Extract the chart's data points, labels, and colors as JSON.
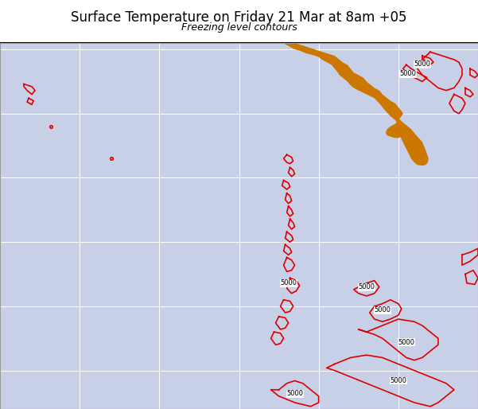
{
  "title": "Surface Temperature on Friday 21 Mar at 8am +05",
  "subtitle": "Freezing level contours",
  "title_fontsize": 12,
  "subtitle_fontsize": 9,
  "ocean_color": "#c8d0e8",
  "land_color": "#cc7700",
  "contour_color": "#dd0000",
  "grid_color": "#ffffff",
  "title_color": "#000000",
  "figsize": [
    6.01,
    5.14
  ],
  "dpi": 100,
  "lon_min": 55.0,
  "lon_max": 85.0,
  "lat_min": -13.0,
  "lat_max": 15.5,
  "india_lons": [
    72.8,
    73.2,
    73.5,
    74.0,
    74.5,
    75.0,
    75.5,
    76.0,
    76.3,
    76.5,
    76.8,
    77.0,
    77.2,
    77.5,
    77.8,
    78.0,
    78.3,
    78.5,
    78.8,
    79.0,
    79.3,
    79.5,
    79.8,
    80.0,
    80.2,
    80.3,
    80.2,
    80.0,
    79.8,
    79.5,
    79.3,
    79.2,
    79.3,
    79.5,
    79.8,
    80.0,
    80.2,
    80.3,
    80.2,
    80.0,
    79.8,
    79.5,
    79.2,
    79.0,
    78.8,
    78.5,
    78.0,
    77.5,
    77.2,
    77.0,
    76.8,
    76.5,
    76.3,
    76.2,
    76.0,
    75.8,
    75.5,
    75.2,
    75.0,
    74.8,
    74.5,
    74.2,
    74.0,
    73.8,
    73.5,
    73.2,
    72.9,
    72.8
  ],
  "india_lats": [
    15.5,
    15.5,
    15.5,
    15.3,
    15.1,
    14.9,
    14.7,
    14.5,
    14.2,
    14.0,
    13.8,
    13.5,
    13.2,
    13.0,
    12.8,
    12.5,
    12.2,
    12.0,
    11.8,
    11.5,
    11.2,
    11.0,
    10.8,
    10.5,
    10.2,
    10.0,
    9.8,
    9.5,
    9.2,
    9.0,
    8.8,
    8.5,
    8.3,
    8.2,
    8.1,
    8.1,
    8.2,
    8.5,
    8.8,
    9.2,
    9.5,
    9.8,
    10.2,
    10.5,
    10.8,
    11.2,
    11.5,
    11.8,
    12.0,
    12.2,
    12.5,
    12.8,
    13.0,
    13.2,
    13.5,
    13.8,
    14.0,
    14.2,
    14.4,
    14.5,
    14.6,
    14.7,
    14.8,
    14.9,
    15.0,
    15.2,
    15.4,
    15.5
  ],
  "sl_lons": [
    79.85,
    80.0,
    80.2,
    80.5,
    80.8,
    81.0,
    81.2,
    81.5,
    81.7,
    81.9,
    81.85,
    81.7,
    81.5,
    81.2,
    81.0,
    80.8,
    80.6,
    80.4,
    80.2,
    80.0,
    79.9,
    79.85
  ],
  "sl_lats": [
    9.85,
    9.7,
    9.4,
    9.1,
    8.8,
    8.5,
    8.2,
    7.8,
    7.2,
    6.5,
    6.2,
    6.0,
    5.95,
    6.0,
    6.2,
    6.5,
    7.0,
    7.5,
    8.0,
    8.7,
    9.3,
    9.85
  ],
  "grid_lons": [
    55,
    60,
    65,
    70,
    75,
    80,
    85
  ],
  "grid_lats": [
    -10,
    -5,
    0,
    5,
    10,
    15
  ]
}
